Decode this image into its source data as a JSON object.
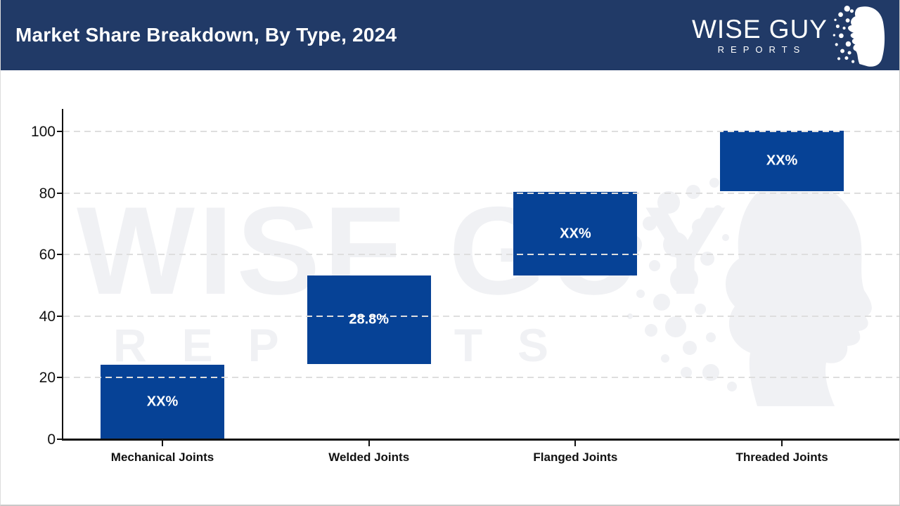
{
  "header": {
    "title": "Market Share Breakdown, By Type, 2024",
    "logo": {
      "line1": "WISE GUY",
      "line2": "REPORTS"
    }
  },
  "watermark": {
    "line1": "WISE GUY",
    "line2": "REPORTS"
  },
  "colors": {
    "header_bg": "#213a67",
    "bar": "#064296",
    "grid": "#dedede",
    "axis": "#111111",
    "bar_label": "#ffffff",
    "watermark": "#f0f1f4"
  },
  "chart_data": {
    "type": "bar",
    "subtype": "waterfall-floating-bars",
    "title": "Market Share Breakdown, By Type, 2024",
    "categories": [
      "Mechanical Joints",
      "Welded Joints",
      "Flanged Joints",
      "Threaded Joints"
    ],
    "segments": [
      {
        "category": "Mechanical Joints",
        "from": 0,
        "to": 24.3,
        "label": "XX%"
      },
      {
        "category": "Welded Joints",
        "from": 24.4,
        "to": 53.2,
        "label": "28.8%"
      },
      {
        "category": "Flanged Joints",
        "from": 53.2,
        "to": 80.3,
        "label": "XX%"
      },
      {
        "category": "Threaded Joints",
        "from": 80.7,
        "to": 100.2,
        "label": "XX%"
      }
    ],
    "yticks": [
      "0",
      "20",
      "40",
      "60",
      "80",
      "100"
    ],
    "ylim": [
      0,
      106
    ],
    "xlabel": "",
    "ylabel": "",
    "grid": "horizontal-dashed",
    "legend": "none"
  }
}
